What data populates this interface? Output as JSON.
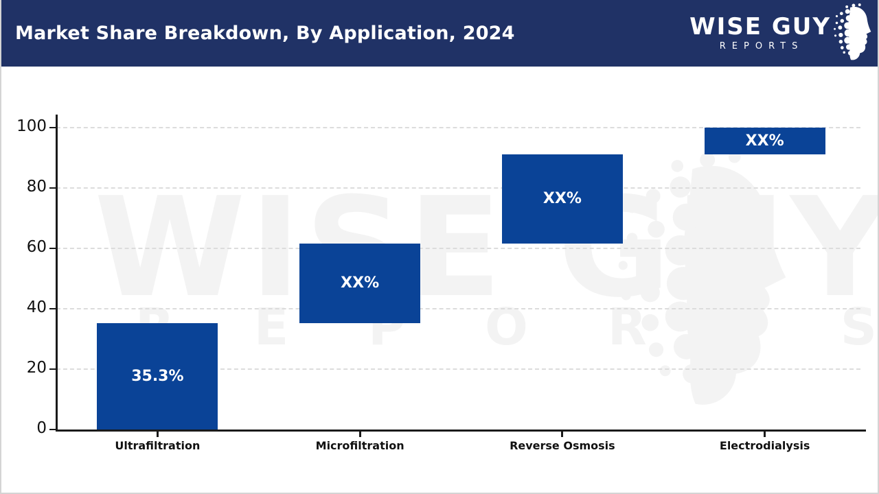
{
  "header": {
    "title": "Market Share Breakdown, By Application, 2024",
    "logo": {
      "brand": "WISE GUY",
      "sub": "REPORTS"
    }
  },
  "watermark": {
    "big": "WISE GUY",
    "small": "R E P O R T S"
  },
  "colors": {
    "header_bg": "#203266",
    "bar": "#0a4397",
    "axis": "#1a1a1a",
    "grid": "#dcdcdc",
    "value_label": "#ffffff",
    "watermark": "#f3f3f3",
    "page_border": "#d4d4d4"
  },
  "chart_data": {
    "type": "bar",
    "subtype": "floating-waterfall",
    "title": "Market Share Breakdown, By Application, 2024",
    "categories": [
      "Ultrafiltration",
      "Microfiltration",
      "Reverse Osmosis",
      "Electrodialysis"
    ],
    "segments": [
      {
        "category": "Ultrafiltration",
        "start": 0,
        "end": 35.3,
        "label": "35.3%"
      },
      {
        "category": "Microfiltration",
        "start": 35.3,
        "end": 61.6,
        "label": "XX%"
      },
      {
        "category": "Reverse Osmosis",
        "start": 61.6,
        "end": 91.2,
        "label": "XX%"
      },
      {
        "category": "Electrodialysis",
        "start": 91.2,
        "end": 100,
        "label": "XX%"
      }
    ],
    "yticks": [
      0,
      20,
      40,
      60,
      80,
      100
    ],
    "ylim": [
      0,
      104
    ],
    "xlabel": "",
    "ylabel": "",
    "grid": "horizontal-dashed",
    "legend": "none",
    "bar_color": "#0a4397"
  }
}
